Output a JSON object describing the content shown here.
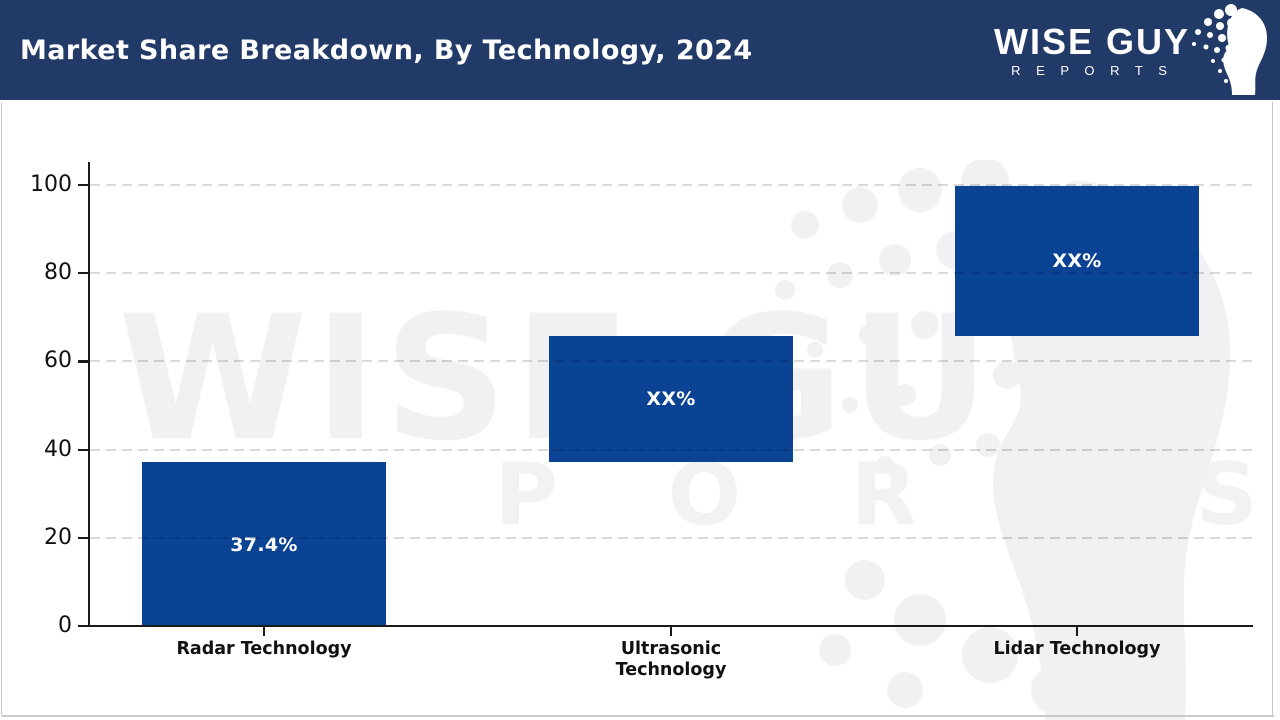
{
  "header": {
    "title": "Market Share Breakdown, By Technology, 2024",
    "logo_line1": "WISE GUY",
    "logo_line2": "R E P O R T S"
  },
  "watermark": {
    "line1": "WISE GUY",
    "line2": "R E P O R T S"
  },
  "colors": {
    "header_bg": "#213a67",
    "bar": "#0a4294",
    "axis": "#1a1a1a",
    "gridline_on_white": "#d9d9d9",
    "value_label": "#ffffff",
    "watermark": "#f1f1f4",
    "frame_border": "#c9c9c9"
  },
  "chart_data": {
    "type": "bar",
    "subtype": "waterfall-floating-bars",
    "title": "Market Share Breakdown, By Technology, 2024",
    "unit": "%",
    "categories": [
      {
        "label": "Radar Technology",
        "lines": [
          "Radar Technology"
        ]
      },
      {
        "label": "Ultrasonic Technology",
        "lines": [
          "Ultrasonic",
          "Technology"
        ]
      },
      {
        "label": "Lidar Technology",
        "lines": [
          "Lidar Technology"
        ]
      }
    ],
    "segments": [
      {
        "category": "Radar Technology",
        "start": 0,
        "end": 37.4,
        "value": 37.4,
        "label": "37.4%"
      },
      {
        "category": "Ultrasonic Technology",
        "start": 37.4,
        "end": 66,
        "value": 28.6,
        "label": "XX%"
      },
      {
        "category": "Lidar Technology",
        "start": 66,
        "end": 100,
        "value": 34,
        "label": "XX%"
      }
    ],
    "bar_color": "#0a4294",
    "yticks": [
      0,
      20,
      40,
      60,
      80,
      100
    ],
    "ylim": [
      0,
      105
    ],
    "grid": "horizontal-dashed",
    "legend": "none",
    "xlabel": "",
    "ylabel": ""
  }
}
